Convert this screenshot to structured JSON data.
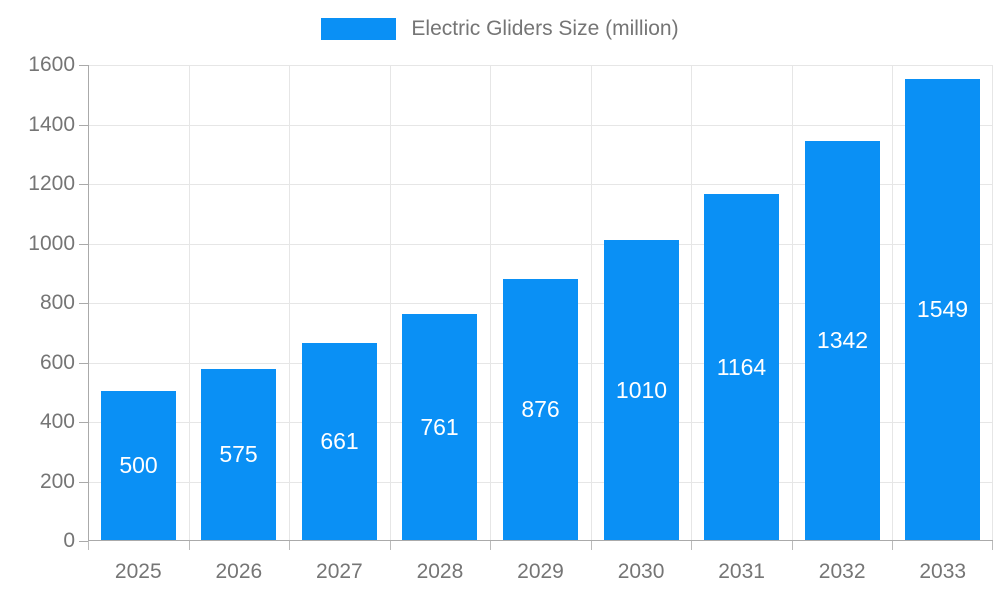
{
  "legend": {
    "label": "Electric Gliders Size (million)"
  },
  "colors": {
    "bar": "#0a90f5",
    "axis_text": "#757575",
    "value_text": "#ffffff",
    "grid": "#e6e6e6",
    "axis_line": "#aaaaaa",
    "background": "#ffffff"
  },
  "chart_data": {
    "type": "bar",
    "title": "Electric Gliders Size (million)",
    "categories": [
      "2025",
      "2026",
      "2027",
      "2028",
      "2029",
      "2030",
      "2031",
      "2032",
      "2033"
    ],
    "values": [
      500,
      575,
      661,
      761,
      876,
      1010,
      1164,
      1342,
      1549
    ],
    "series_name": "Electric Gliders Size (million)",
    "xlabel": "",
    "ylabel": "",
    "ylim": [
      0,
      1600
    ],
    "ytick_step": 200,
    "ytick_labels": [
      "0",
      "200",
      "400",
      "600",
      "800",
      "1000",
      "1200",
      "1400",
      "1600"
    ],
    "grid": true,
    "legend_position": "top-center",
    "value_label_position": "inside-center"
  }
}
